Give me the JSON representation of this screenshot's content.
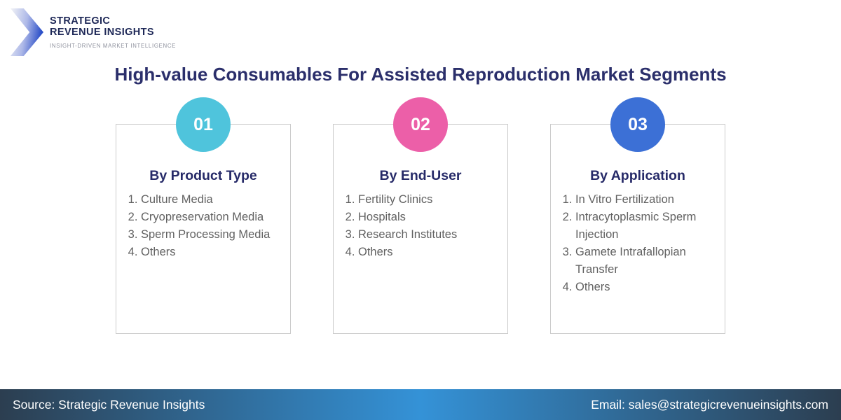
{
  "brand": {
    "name_line1": "STRATEGIC",
    "name_line2": "REVENUE INSIGHTS",
    "tagline": "INSIGHT-DRIVEN MARKET INTELLIGENCE",
    "logo_text_color": "#1e2857",
    "logo_gradient_start": "#f2f3f6",
    "logo_gradient_end": "#2b4fc8"
  },
  "title": "High-value Consumables For Assisted Reproduction Market Segments",
  "title_color": "#2b2f6b",
  "cards": [
    {
      "number": "01",
      "color": "#4fc4dc",
      "heading": "By Product Type",
      "items": [
        "Culture Media",
        "Cryopreservation Media",
        "Sperm Processing Media",
        "Others"
      ]
    },
    {
      "number": "02",
      "color": "#ec5fa8",
      "heading": "By End-User",
      "items": [
        "Fertility Clinics",
        "Hospitals",
        "Research Institutes",
        "Others"
      ]
    },
    {
      "number": "03",
      "color": "#3c70d6",
      "heading": "By Application",
      "items": [
        "In Vitro Fertilization",
        "Intracytoplasmic Sperm Injection",
        "Gamete Intrafallopian Transfer",
        "Others"
      ]
    }
  ],
  "footer": {
    "source": "Source: Strategic Revenue Insights",
    "email": "Email: sales@strategicrevenueinsights.com",
    "gradient_edge_color": "#2c3e50",
    "gradient_center_color": "#3492d7"
  }
}
